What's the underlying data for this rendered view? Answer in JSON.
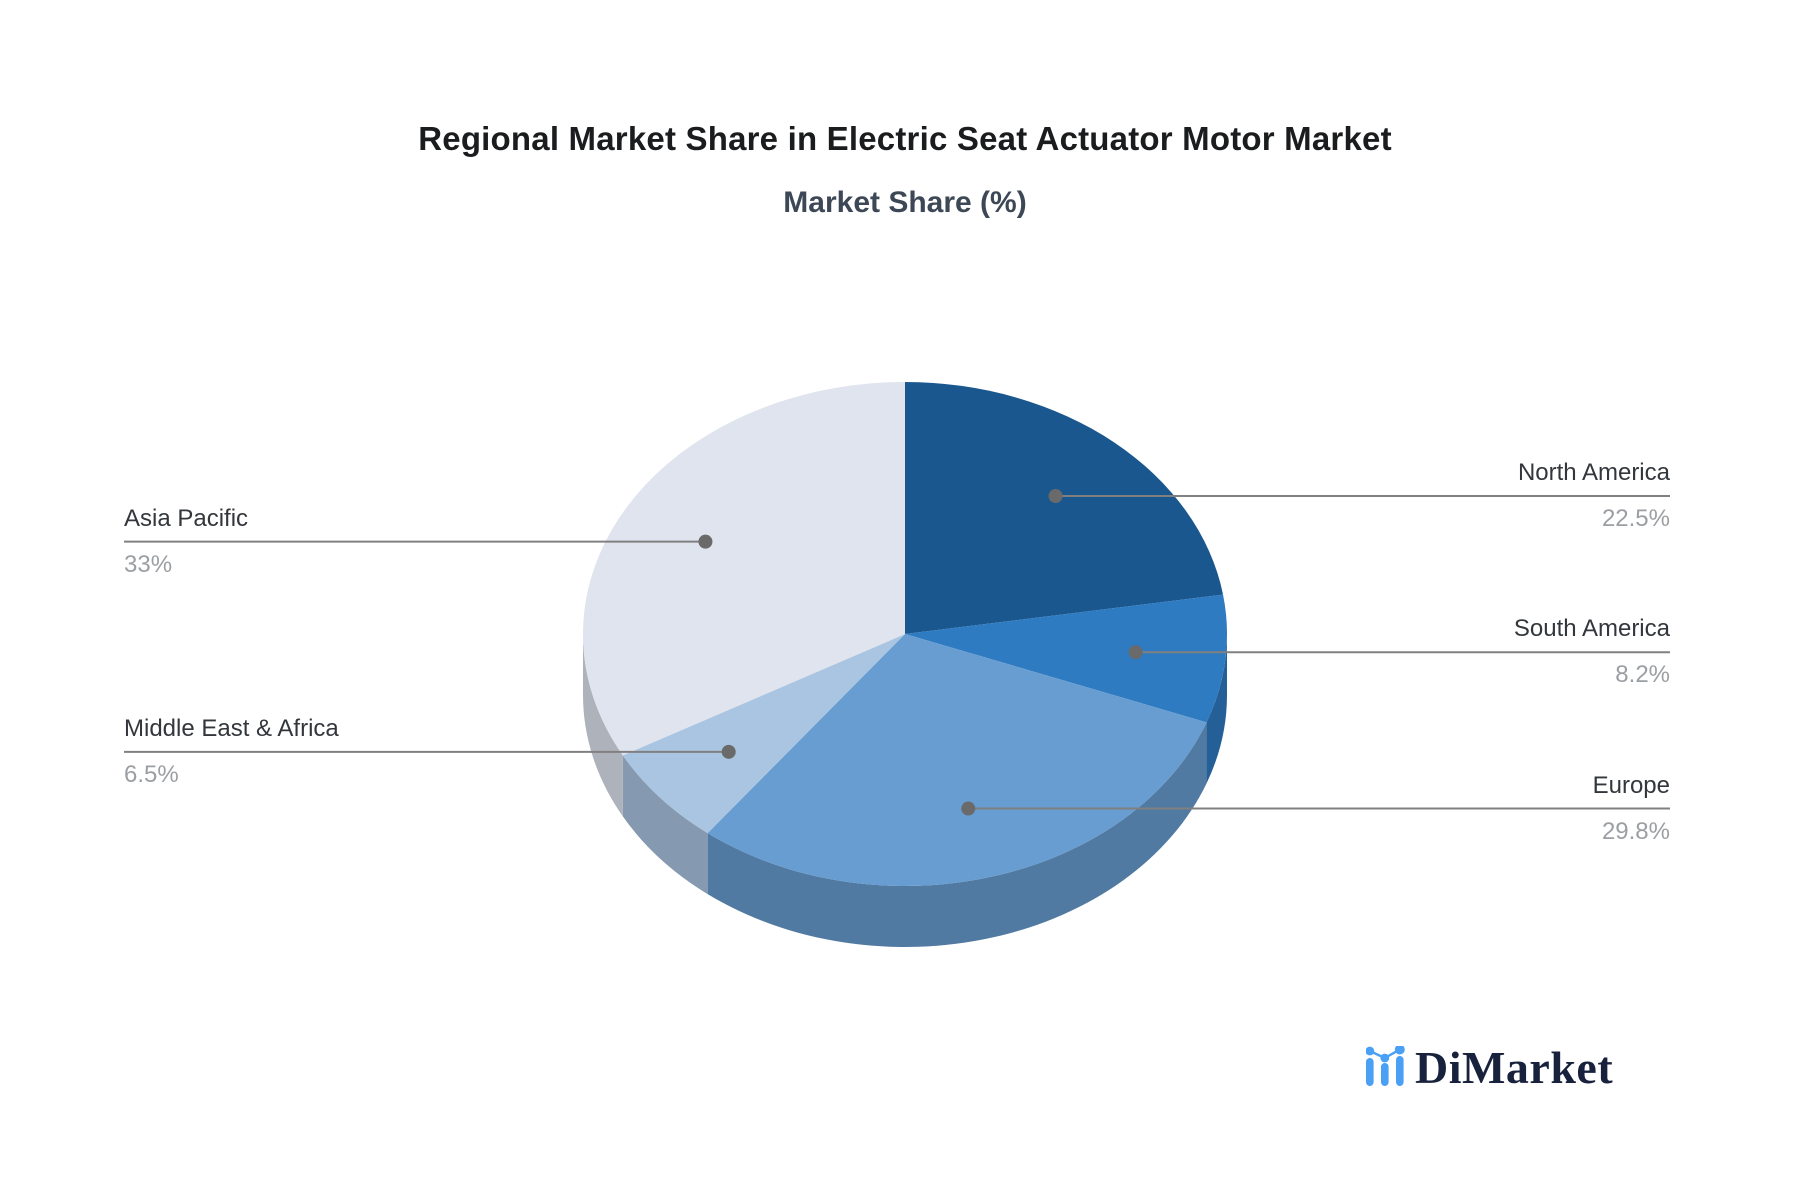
{
  "title": "Regional Market Share in Electric Seat Actuator Motor Market",
  "subtitle": "Market Share (%)",
  "logo": {
    "text": "DiMarket",
    "icon": "bar-chart-logo-icon",
    "icon_color": "#4aa0f5",
    "text_color": "#18223c"
  },
  "chart_data": {
    "type": "pie",
    "title": "Regional Market Share in Electric Seat Actuator Motor Market",
    "subtitle": "Market Share (%)",
    "unit": "%",
    "effect": "3d",
    "start_angle": "12-oclock",
    "direction": "clockwise",
    "slices": [
      {
        "label": "North America",
        "value": 22.5,
        "pct_label": "22.5%",
        "color": "#1b578f",
        "label_side": "right"
      },
      {
        "label": "South America",
        "value": 8.2,
        "pct_label": "8.2%",
        "color": "#2e7bc1",
        "label_side": "right"
      },
      {
        "label": "Europe",
        "value": 29.8,
        "pct_label": "29.8%",
        "color": "#689dd1",
        "label_side": "right"
      },
      {
        "label": "Middle East & Africa",
        "value": 6.5,
        "pct_label": "6.5%",
        "color": "#aac5e1",
        "label_side": "left"
      },
      {
        "label": "Asia Pacific",
        "value": 33,
        "pct_label": "33%",
        "color": "#dfe4ee",
        "label_side": "left"
      }
    ],
    "colors": {
      "leader_line": "#808080",
      "dot": "#6a6a6a",
      "label_text": "#33373c",
      "pct_text": "#9b9fa3",
      "title_text": "#1a1c1e",
      "subtitle_text": "#3d4856"
    }
  }
}
